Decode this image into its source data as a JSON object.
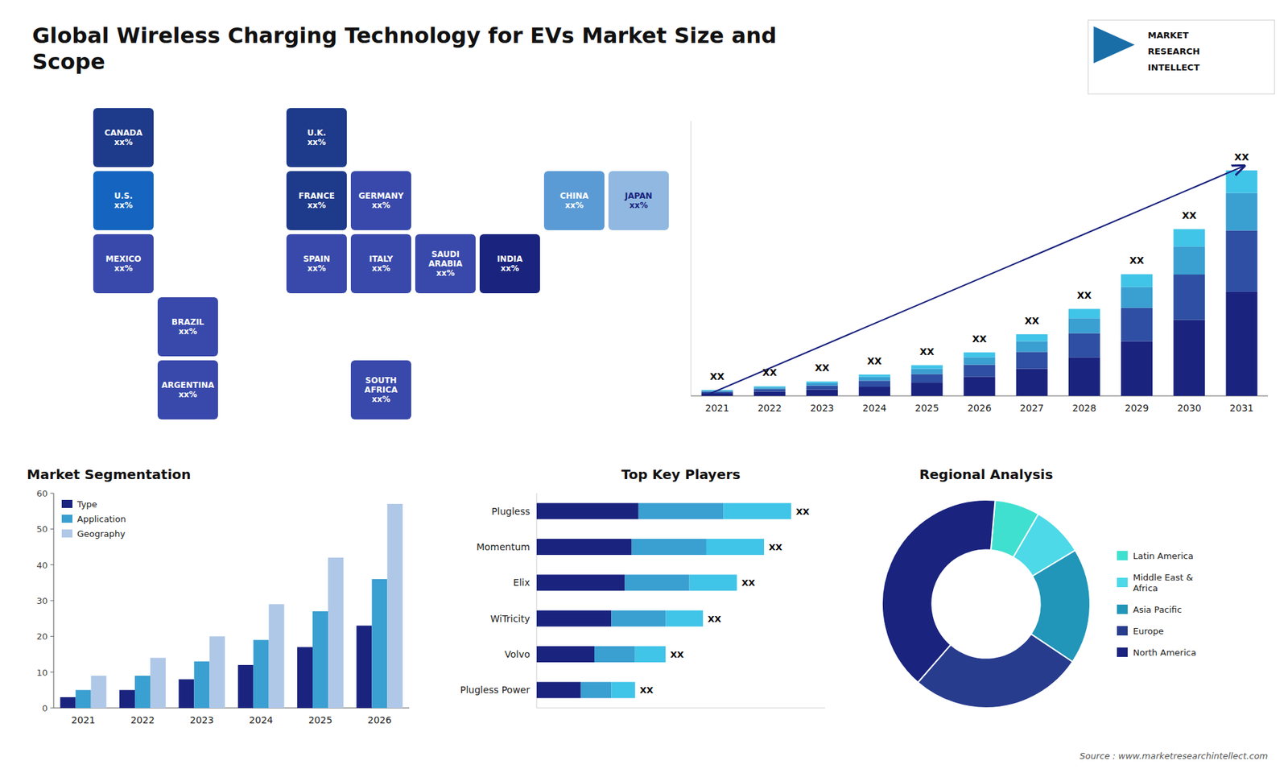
{
  "title": "Global Wireless Charging Technology for EVs Market Size and\nScope",
  "annotations": [
    "MARKET",
    "RESEARCH",
    "INTELLECT",
    "Source : www.marketresearchintellect.com"
  ],
  "chart_data": [
    {
      "type": "map",
      "regions": [
        {
          "label": "U.S.\nxx%",
          "color": "#1565c0"
        },
        {
          "label": "CANADA\nxx%",
          "color": "#1e3a8a"
        },
        {
          "label": "MEXICO\nxx%",
          "color": "#3949ab"
        },
        {
          "label": "BRAZIL\nxx%",
          "color": "#3949ab"
        },
        {
          "label": "ARGENTINA\nxx%",
          "color": "#3949ab"
        },
        {
          "label": "U.K.\nxx%",
          "color": "#1e3a8a"
        },
        {
          "label": "FRANCE\nxx%",
          "color": "#1e3a8a"
        },
        {
          "label": "SPAIN\nxx%",
          "color": "#3949ab"
        },
        {
          "label": "GERMANY\nxx%",
          "color": "#3949ab"
        },
        {
          "label": "ITALY\nxx%",
          "color": "#3949ab"
        },
        {
          "label": "SAUDI\nARABIA\nxx%",
          "color": "#3949ab"
        },
        {
          "label": "SOUTH\nAFRICA\nxx%",
          "color": "#3949ab"
        },
        {
          "label": "CHINA\nxx%",
          "color": "#5b9bd5"
        },
        {
          "label": "JAPAN\nxx%",
          "color": "#90b8e0"
        },
        {
          "label": "INDIA\nxx%",
          "color": "#1a237e"
        }
      ]
    },
    {
      "type": "bar",
      "stacked": true,
      "categories": [
        "2021",
        "2022",
        "2023",
        "2024",
        "2025",
        "2026",
        "2027",
        "2028",
        "2029",
        "2030",
        "2031"
      ],
      "series": [
        {
          "color": "#1a237e",
          "values": [
            1.0,
            1.6,
            2.4,
            3.5,
            5.0,
            7.2,
            10.2,
            14.5,
            20.5,
            28.5,
            39.0
          ]
        },
        {
          "color": "#2e4fa3",
          "values": [
            0.6,
            1.0,
            1.5,
            2.2,
            3.2,
            4.5,
            6.3,
            9.0,
            12.5,
            17.0,
            23.0
          ]
        },
        {
          "color": "#3a9fd1",
          "values": [
            0.4,
            0.6,
            0.9,
            1.4,
            2.0,
            2.8,
            4.0,
            5.6,
            7.8,
            10.5,
            14.0
          ]
        },
        {
          "color": "#40c4e8",
          "values": [
            0.2,
            0.4,
            0.6,
            0.9,
            1.3,
            1.8,
            2.6,
            3.5,
            4.8,
            6.5,
            8.5
          ]
        }
      ],
      "annotations": [
        "XX",
        "XX",
        "XX",
        "XX",
        "XX",
        "XX",
        "XX",
        "XX",
        "XX",
        "XX",
        "XX"
      ],
      "ylim": [
        0,
        103.09
      ],
      "tick_labels": "x",
      "grid": false
    },
    {
      "type": "bar",
      "title": "Market Segmentation",
      "categories": [
        "2021",
        "2022",
        "2023",
        "2024",
        "2025",
        "2026"
      ],
      "series": [
        {
          "name": "Type",
          "color": "#1a237e",
          "values": [
            3,
            5,
            8,
            12,
            17,
            23
          ]
        },
        {
          "name": "Application",
          "color": "#3a9fd1",
          "values": [
            5,
            9,
            13,
            19,
            27,
            36
          ]
        },
        {
          "name": "Geography",
          "color": "#b0c8e8",
          "values": [
            9,
            14,
            20,
            29,
            42,
            57
          ]
        }
      ],
      "ylim": [
        0,
        60
      ],
      "yticks": [
        0,
        10,
        20,
        30,
        40,
        50,
        60
      ],
      "legend": "upper left",
      "grid": false
    },
    {
      "type": "bar",
      "orientation": "horizontal",
      "stacked": true,
      "title": "Top Key Players",
      "categories": [
        "Plugless",
        "Momentum",
        "Elix",
        "WiTricity",
        "Volvo",
        "Plugless Power"
      ],
      "series": [
        {
          "color": "#1a237e",
          "values": [
            0.3,
            0.28,
            0.26,
            0.22,
            0.17,
            0.13
          ]
        },
        {
          "color": "#3a9fd1",
          "values": [
            0.25,
            0.22,
            0.19,
            0.16,
            0.12,
            0.09
          ]
        },
        {
          "color": "#40c4e8",
          "values": [
            0.2,
            0.17,
            0.14,
            0.11,
            0.09,
            0.07
          ]
        }
      ],
      "annotations": [
        "XX",
        "XX",
        "XX",
        "XX",
        "XX",
        "XX"
      ],
      "xlim": [
        0,
        0.85
      ],
      "tick_labels": "y",
      "grid": false
    },
    {
      "type": "pie",
      "title": "Regional Analysis",
      "labels": [
        "Latin America",
        "Middle East &\nAfrica",
        "Asia Pacific",
        "Europe",
        "North America"
      ],
      "values": [
        7,
        8,
        18,
        27,
        40
      ],
      "colors": [
        "#40e0d0",
        "#4dd9e8",
        "#2196b8",
        "#283c8e",
        "#1a237e"
      ],
      "legend": "right"
    }
  ]
}
